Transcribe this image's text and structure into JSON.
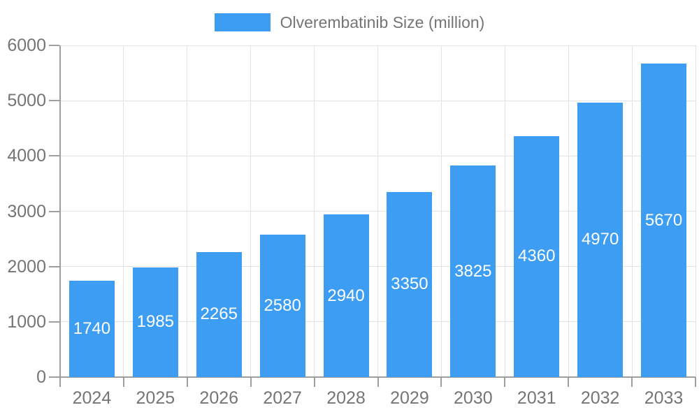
{
  "legend": {
    "label": "Olverembatinib Size (million)"
  },
  "chart_data": {
    "type": "bar",
    "title": "",
    "series_name": "Olverembatinib Size (million)",
    "categories": [
      "2024",
      "2025",
      "2026",
      "2027",
      "2028",
      "2029",
      "2030",
      "2031",
      "2032",
      "2033"
    ],
    "values": [
      1740,
      1985,
      2265,
      2580,
      2940,
      3350,
      3825,
      4360,
      4970,
      5670
    ],
    "xlabel": "",
    "ylabel": "",
    "ylim": [
      0,
      6000
    ],
    "yticks": [
      0,
      1000,
      2000,
      3000,
      4000,
      5000,
      6000
    ],
    "grid": true,
    "legend_position": "top-center",
    "value_label_position": "inside-center",
    "colors": {
      "bar": "#3D9DF3",
      "grid": "#E2E2E2",
      "axis": "#9E9E9E",
      "tick_label": "#757575",
      "value_label": "#FFFFFF",
      "legend_text": "#757575",
      "background": "#FFFFFF"
    }
  }
}
